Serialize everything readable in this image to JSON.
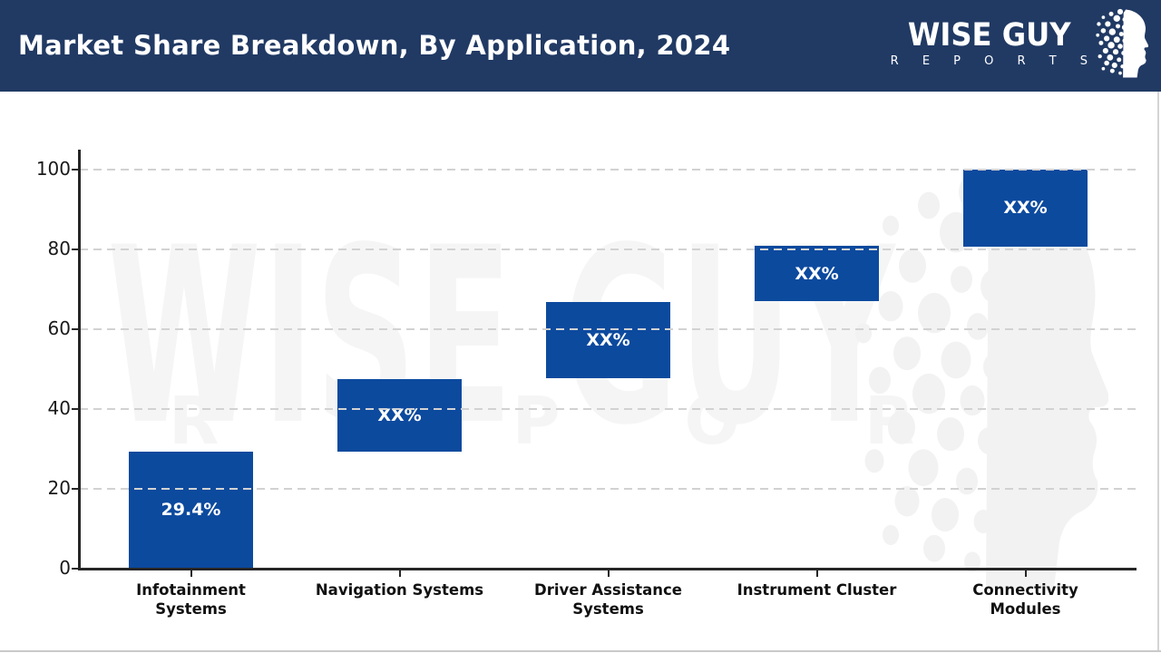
{
  "header": {
    "title": "Market Share Breakdown, By Application, 2024",
    "bg_color": "#213a64",
    "logo": {
      "name": "WISE GUY",
      "subname": "R E P O R T S"
    }
  },
  "watermark": {
    "line1": "WISE GUY",
    "line2": "R E P O R T S"
  },
  "chart_data": {
    "type": "bar",
    "subtype": "floating-waterfall",
    "title": "Market Share Breakdown, By Application, 2024",
    "categories": [
      "Infotainment\nSystems",
      "Navigation Systems",
      "Driver Assistance\nSystems",
      "Instrument Cluster",
      "Connectivity\nModules"
    ],
    "segments": [
      {
        "category": "Infotainment Systems",
        "start": 0,
        "end": 29.4,
        "label": "29.4%"
      },
      {
        "category": "Navigation Systems",
        "start": 29.4,
        "end": 47.5,
        "label": "XX%"
      },
      {
        "category": "Driver Assistance Systems",
        "start": 47.7,
        "end": 66.8,
        "label": "XX%"
      },
      {
        "category": "Instrument Cluster",
        "start": 67,
        "end": 80.9,
        "label": "XX%"
      },
      {
        "category": "Connectivity Modules",
        "start": 80.7,
        "end": 100,
        "label": "XX%"
      }
    ],
    "ylim": [
      0,
      100
    ],
    "yticks": [
      0,
      20,
      40,
      60,
      80,
      100
    ],
    "grid": "dashed horizontal gridlines, drawn over bars",
    "legend": "none",
    "bar_color": "#0c4a9e",
    "bar_label_color": "#ffffff",
    "axis_color": "#262626"
  }
}
